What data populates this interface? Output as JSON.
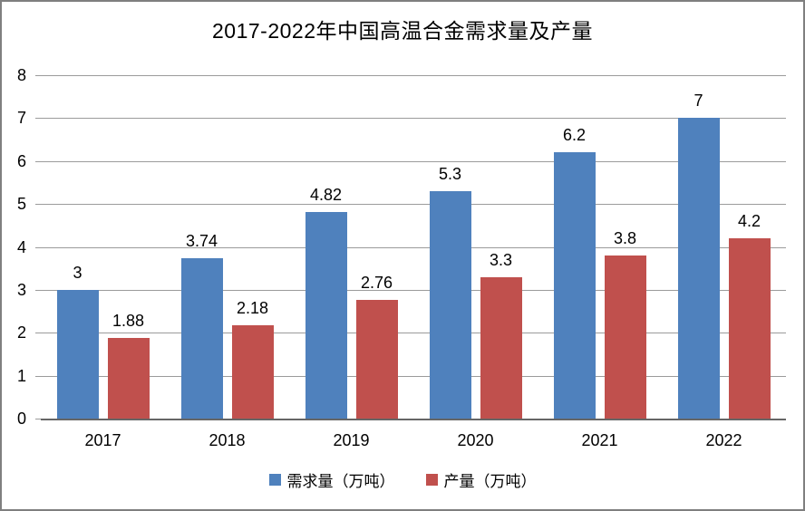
{
  "chart_data": {
    "type": "bar",
    "title": "2017-2022年中国高温合金需求量及产量",
    "categories": [
      "2017",
      "2018",
      "2019",
      "2020",
      "2021",
      "2022"
    ],
    "series": [
      {
        "name": "需求量（万吨）",
        "color": "#4F81BD",
        "values": [
          3,
          3.74,
          4.82,
          5.3,
          6.2,
          7
        ]
      },
      {
        "name": "产量（万吨）",
        "color": "#C0504D",
        "values": [
          1.88,
          2.18,
          2.76,
          3.3,
          3.8,
          4.2
        ]
      }
    ],
    "ylim": [
      0,
      8
    ],
    "ytick_step": 1,
    "ytick_labels": [
      "0",
      "1",
      "2",
      "3",
      "4",
      "5",
      "6",
      "7",
      "8"
    ],
    "grid": true,
    "legend_position": "bottom",
    "colors": {
      "gridline": "#9b9b9b",
      "axis_line": "#666666",
      "text": "#000000",
      "background": "#ffffff",
      "frame_border": "#7f7f7f"
    }
  }
}
